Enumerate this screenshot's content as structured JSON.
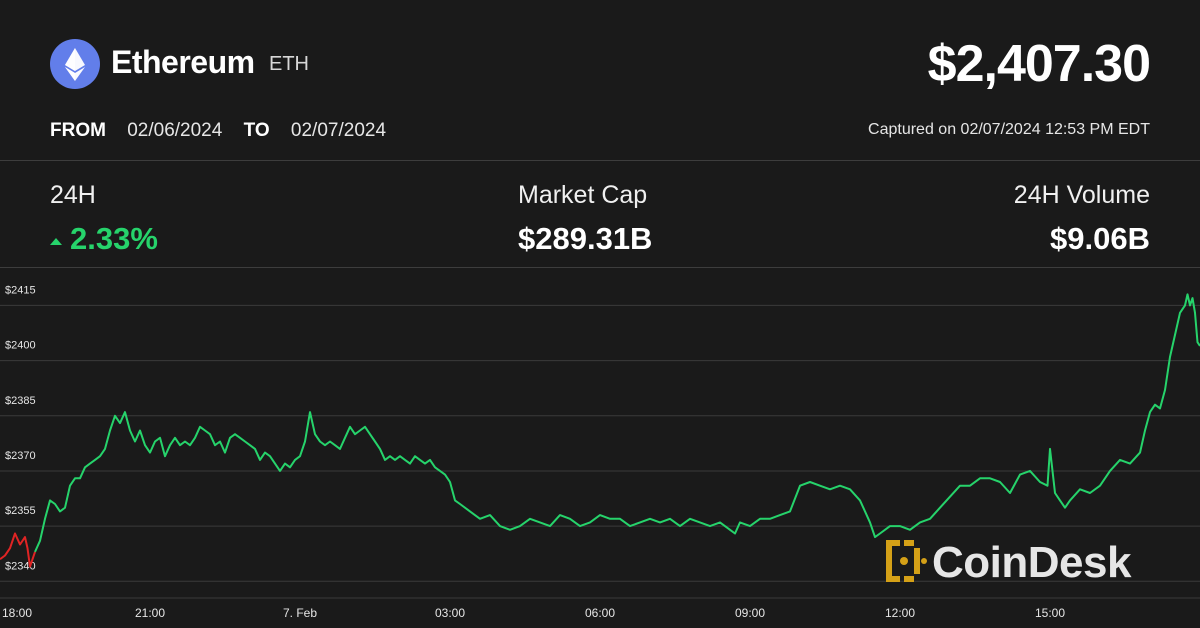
{
  "header": {
    "coin_name": "Ethereum",
    "coin_ticker": "ETH",
    "price": "$2,407.30",
    "from_label": "FROM",
    "from_date": "02/06/2024",
    "to_label": "TO",
    "to_date": "02/07/2024",
    "captured": "Captured on 02/07/2024 12:53 PM EDT"
  },
  "stats": {
    "change_label": "24H",
    "change_value": "2.33%",
    "market_cap_label": "Market Cap",
    "market_cap_value": "$289.31B",
    "volume_label": "24H Volume",
    "volume_value": "$9.06B"
  },
  "colors": {
    "up": "#26d36b",
    "down": "#e02424",
    "logo": "#627eea",
    "watermark": "#d4a017"
  },
  "icons": {
    "logo": "ethereum-icon",
    "watermark": "coindesk-logo"
  },
  "watermark": {
    "text": "CoinDesk"
  },
  "chart_data": {
    "type": "line",
    "xlim_hours": [
      18,
      42
    ],
    "ylim": [
      2336,
      2423
    ],
    "y_ticks": [
      2340,
      2355,
      2370,
      2385,
      2400,
      2415
    ],
    "y_tick_labels": [
      "$2340",
      "$2355",
      "$2370",
      "$2385",
      "$2400",
      "$2415"
    ],
    "x_ticks": [
      {
        "h": 18,
        "label": "18:00"
      },
      {
        "h": 21,
        "label": "21:00"
      },
      {
        "h": 24,
        "label": "7. Feb"
      },
      {
        "h": 27,
        "label": "03:00"
      },
      {
        "h": 30,
        "label": "06:00"
      },
      {
        "h": 33,
        "label": "09:00"
      },
      {
        "h": 36,
        "label": "12:00"
      },
      {
        "h": 39,
        "label": "15:00"
      }
    ],
    "series": [
      {
        "points": [
          [
            18.0,
            2346
          ],
          [
            18.1,
            2347
          ],
          [
            18.2,
            2349
          ],
          [
            18.3,
            2353
          ],
          [
            18.4,
            2350
          ],
          [
            18.5,
            2352
          ],
          [
            18.55,
            2349
          ],
          [
            18.6,
            2344
          ],
          [
            18.7,
            2348
          ],
          [
            18.8,
            2351
          ],
          [
            18.9,
            2357
          ],
          [
            19.0,
            2362
          ],
          [
            19.1,
            2361
          ],
          [
            19.2,
            2359
          ],
          [
            19.3,
            2360
          ],
          [
            19.4,
            2366
          ],
          [
            19.5,
            2368
          ],
          [
            19.6,
            2368
          ],
          [
            19.7,
            2371
          ],
          [
            19.8,
            2372
          ],
          [
            19.9,
            2373
          ],
          [
            20.0,
            2374
          ],
          [
            20.1,
            2376
          ],
          [
            20.2,
            2381
          ],
          [
            20.3,
            2385
          ],
          [
            20.4,
            2383
          ],
          [
            20.5,
            2386
          ],
          [
            20.6,
            2381
          ],
          [
            20.7,
            2378
          ],
          [
            20.8,
            2381
          ],
          [
            20.9,
            2377
          ],
          [
            21.0,
            2375
          ],
          [
            21.1,
            2378
          ],
          [
            21.2,
            2379
          ],
          [
            21.3,
            2374
          ],
          [
            21.4,
            2377
          ],
          [
            21.5,
            2379
          ],
          [
            21.6,
            2377
          ],
          [
            21.7,
            2378
          ],
          [
            21.8,
            2377
          ],
          [
            21.9,
            2379
          ],
          [
            22.0,
            2382
          ],
          [
            22.1,
            2381
          ],
          [
            22.2,
            2380
          ],
          [
            22.3,
            2377
          ],
          [
            22.4,
            2378
          ],
          [
            22.5,
            2375
          ],
          [
            22.6,
            2379
          ],
          [
            22.7,
            2380
          ],
          [
            22.8,
            2379
          ],
          [
            22.9,
            2378
          ],
          [
            23.0,
            2377
          ],
          [
            23.1,
            2376
          ],
          [
            23.2,
            2373
          ],
          [
            23.3,
            2375
          ],
          [
            23.4,
            2374
          ],
          [
            23.5,
            2372
          ],
          [
            23.6,
            2370
          ],
          [
            23.7,
            2372
          ],
          [
            23.8,
            2371
          ],
          [
            23.9,
            2373
          ],
          [
            24.0,
            2374
          ],
          [
            24.1,
            2378
          ],
          [
            24.2,
            2386
          ],
          [
            24.3,
            2380
          ],
          [
            24.4,
            2378
          ],
          [
            24.5,
            2377
          ],
          [
            24.6,
            2378
          ],
          [
            24.7,
            2377
          ],
          [
            24.8,
            2376
          ],
          [
            24.9,
            2379
          ],
          [
            25.0,
            2382
          ],
          [
            25.1,
            2380
          ],
          [
            25.2,
            2381
          ],
          [
            25.3,
            2382
          ],
          [
            25.4,
            2380
          ],
          [
            25.5,
            2378
          ],
          [
            25.6,
            2376
          ],
          [
            25.7,
            2373
          ],
          [
            25.8,
            2374
          ],
          [
            25.9,
            2373
          ],
          [
            26.0,
            2374
          ],
          [
            26.1,
            2373
          ],
          [
            26.2,
            2372
          ],
          [
            26.3,
            2374
          ],
          [
            26.4,
            2373
          ],
          [
            26.5,
            2372
          ],
          [
            26.6,
            2373
          ],
          [
            26.7,
            2371
          ],
          [
            26.8,
            2370
          ],
          [
            26.9,
            2369
          ],
          [
            27.0,
            2367
          ],
          [
            27.1,
            2362
          ],
          [
            27.2,
            2361
          ],
          [
            27.4,
            2359
          ],
          [
            27.6,
            2357
          ],
          [
            27.8,
            2358
          ],
          [
            28.0,
            2355
          ],
          [
            28.2,
            2354
          ],
          [
            28.4,
            2355
          ],
          [
            28.6,
            2357
          ],
          [
            28.8,
            2356
          ],
          [
            29.0,
            2355
          ],
          [
            29.2,
            2358
          ],
          [
            29.4,
            2357
          ],
          [
            29.6,
            2355
          ],
          [
            29.8,
            2356
          ],
          [
            30.0,
            2358
          ],
          [
            30.2,
            2357
          ],
          [
            30.4,
            2357
          ],
          [
            30.6,
            2355
          ],
          [
            30.8,
            2356
          ],
          [
            31.0,
            2357
          ],
          [
            31.2,
            2356
          ],
          [
            31.4,
            2357
          ],
          [
            31.6,
            2355
          ],
          [
            31.8,
            2357
          ],
          [
            32.0,
            2356
          ],
          [
            32.2,
            2355
          ],
          [
            32.4,
            2356
          ],
          [
            32.6,
            2354
          ],
          [
            32.7,
            2353
          ],
          [
            32.8,
            2356
          ],
          [
            33.0,
            2355
          ],
          [
            33.2,
            2357
          ],
          [
            33.4,
            2357
          ],
          [
            33.6,
            2358
          ],
          [
            33.8,
            2359
          ],
          [
            34.0,
            2366
          ],
          [
            34.2,
            2367
          ],
          [
            34.4,
            2366
          ],
          [
            34.6,
            2365
          ],
          [
            34.8,
            2366
          ],
          [
            35.0,
            2365
          ],
          [
            35.2,
            2362
          ],
          [
            35.4,
            2356
          ],
          [
            35.5,
            2352
          ],
          [
            35.6,
            2353
          ],
          [
            35.8,
            2355
          ],
          [
            36.0,
            2355
          ],
          [
            36.2,
            2354
          ],
          [
            36.4,
            2356
          ],
          [
            36.6,
            2357
          ],
          [
            36.8,
            2360
          ],
          [
            37.0,
            2363
          ],
          [
            37.2,
            2366
          ],
          [
            37.4,
            2366
          ],
          [
            37.6,
            2368
          ],
          [
            37.8,
            2368
          ],
          [
            38.0,
            2367
          ],
          [
            38.2,
            2364
          ],
          [
            38.4,
            2369
          ],
          [
            38.6,
            2370
          ],
          [
            38.8,
            2367
          ],
          [
            38.95,
            2366
          ],
          [
            39.0,
            2376
          ],
          [
            39.1,
            2364
          ],
          [
            39.2,
            2362
          ],
          [
            39.3,
            2360
          ],
          [
            39.4,
            2362
          ],
          [
            39.6,
            2365
          ],
          [
            39.8,
            2364
          ],
          [
            40.0,
            2366
          ],
          [
            40.2,
            2370
          ],
          [
            40.4,
            2373
          ],
          [
            40.6,
            2372
          ],
          [
            40.8,
            2375
          ],
          [
            40.9,
            2381
          ],
          [
            41.0,
            2386
          ],
          [
            41.1,
            2388
          ],
          [
            41.2,
            2387
          ],
          [
            41.3,
            2392
          ],
          [
            41.4,
            2401
          ],
          [
            41.5,
            2407
          ],
          [
            41.6,
            2413
          ],
          [
            41.7,
            2415
          ],
          [
            41.75,
            2418
          ],
          [
            41.8,
            2415
          ],
          [
            41.85,
            2417
          ],
          [
            41.9,
            2413
          ],
          [
            41.95,
            2405
          ],
          [
            42.0,
            2404
          ]
        ]
      }
    ]
  }
}
